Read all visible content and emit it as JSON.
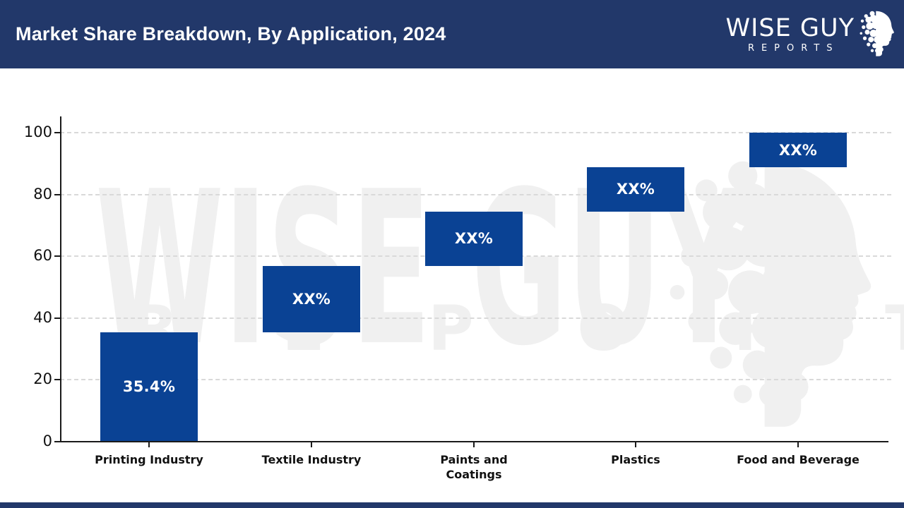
{
  "header": {
    "title": "Market Share Breakdown, By Application, 2024",
    "logo": {
      "name": "WISE GUY",
      "sub": "REPORTS"
    }
  },
  "watermark": {
    "name": "WISE GUY",
    "sub": "R E P O R T S"
  },
  "footer": {},
  "chart_data": {
    "type": "bar",
    "subtype": "floating-waterfall",
    "title": "Market Share Breakdown, By Application, 2024",
    "categories": [
      "Printing Industry",
      "Textile Industry",
      "Paints and Coatings",
      "Plastics",
      "Food and Beverage"
    ],
    "category_label_lines": [
      [
        "Printing Industry"
      ],
      [
        "Textile Industry"
      ],
      [
        "Paints and",
        "Coatings"
      ],
      [
        "Plastics"
      ],
      [
        "Food and Beverage"
      ]
    ],
    "segments": [
      {
        "category": "Printing Industry",
        "start": 0,
        "end": 35.4,
        "label": "35.4%"
      },
      {
        "category": "Textile Industry",
        "start": 35.4,
        "end": 56.9,
        "label": "XX%"
      },
      {
        "category": "Paints and Coatings",
        "start": 56.9,
        "end": 74.5,
        "label": "XX%"
      },
      {
        "category": "Plastics",
        "start": 74.5,
        "end": 88.8,
        "label": "XX%"
      },
      {
        "category": "Food and Beverage",
        "start": 88.8,
        "end": 100,
        "label": "XX%"
      }
    ],
    "yticks": [
      0,
      20,
      40,
      60,
      80,
      100
    ],
    "ylim": [
      0,
      105
    ],
    "xlabel": "",
    "ylabel": "",
    "grid": "horizontal-dashed",
    "legend_position": "none",
    "colors": {
      "bar": "#0a4294",
      "header_bg": "#22386a",
      "grid": "#d9d9d9",
      "axis": "#1a1a1a",
      "watermark": "#f0f0f0",
      "bar_label": "#ffffff",
      "title_text": "#ffffff"
    }
  }
}
